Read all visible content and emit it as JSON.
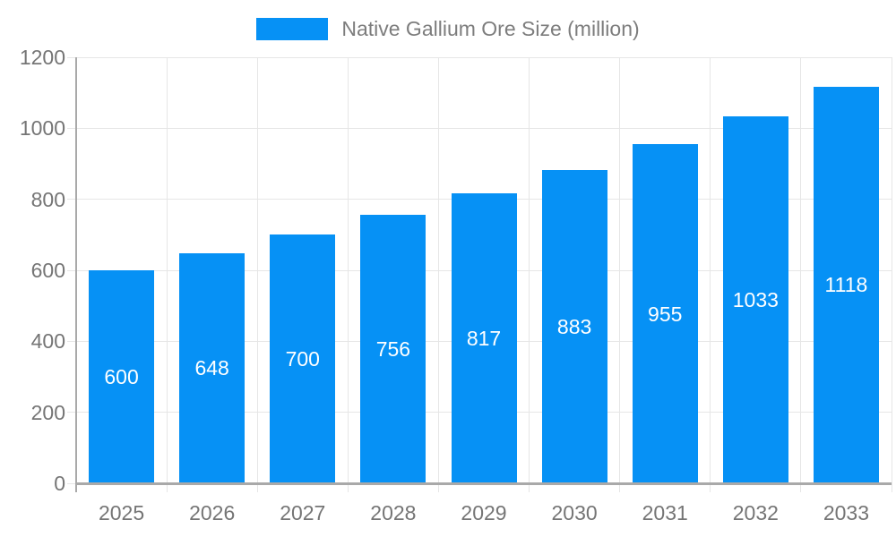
{
  "colors": {
    "bar": "#0691f5",
    "grid": "#e6e6e6",
    "axis": "#a9a9a9",
    "text": "#757575",
    "bar_label": "#ffffff"
  },
  "legend": {
    "label": "Native Gallium Ore Size (million)"
  },
  "chart_data": {
    "type": "bar",
    "title": "Native Gallium Ore Size (million)",
    "categories": [
      "2025",
      "2026",
      "2027",
      "2028",
      "2029",
      "2030",
      "2031",
      "2032",
      "2033"
    ],
    "values": [
      600,
      648,
      700,
      756,
      817,
      883,
      955,
      1033,
      1118
    ],
    "xlabel": "",
    "ylabel": "",
    "ylim": [
      0,
      1200
    ],
    "ytick_step": 200,
    "yticks": [
      0,
      200,
      400,
      600,
      800,
      1000,
      1200
    ],
    "grid": true,
    "legend_position": "top-center",
    "bar_labels_inside": true
  }
}
